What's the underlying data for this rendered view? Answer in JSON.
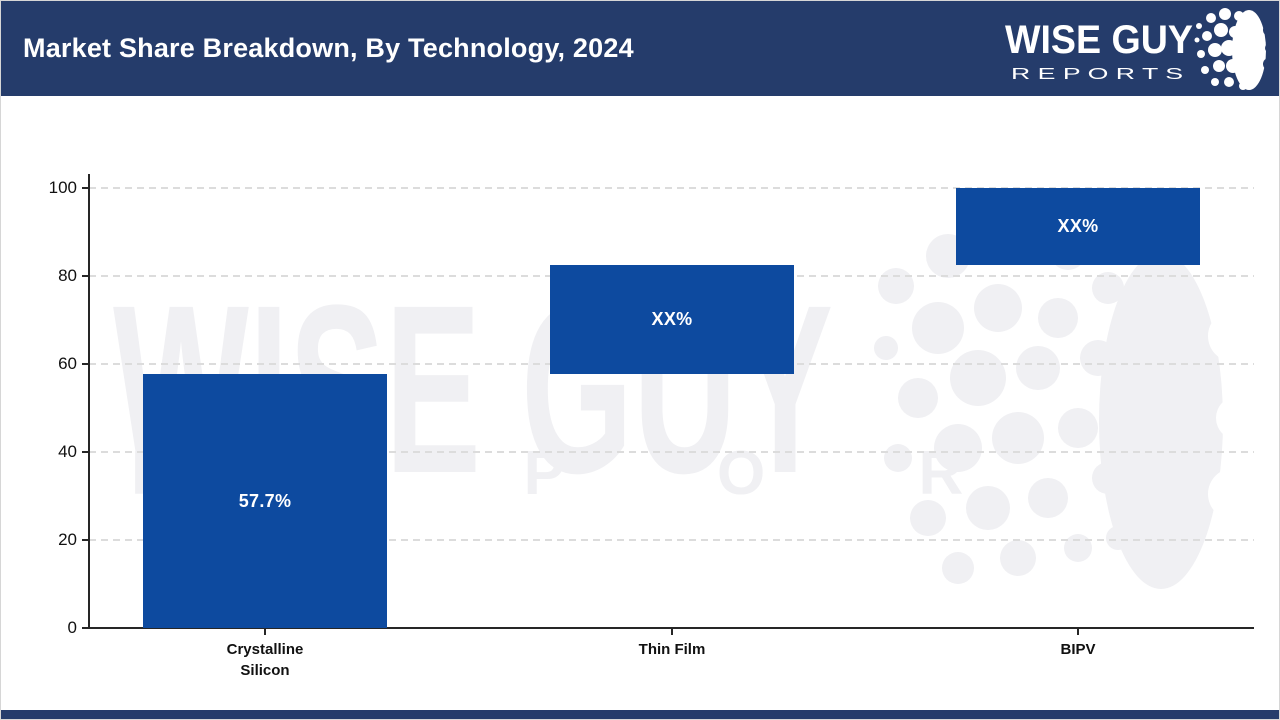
{
  "header": {
    "title": "Market Share Breakdown, By Technology, 2024",
    "logo_line1": "WISE GUY",
    "logo_line2": "R E P O R T S"
  },
  "watermark": {
    "line1": "WISE GUY",
    "line2": "R E P O R T S"
  },
  "chart_data": {
    "type": "bar",
    "subtype": "floating-segment-waterfall",
    "title": "Market Share Breakdown, By Technology, 2024",
    "categories": [
      "Crystalline\nSilicon",
      "Thin Film",
      "BIPV"
    ],
    "segments": [
      {
        "category": "Crystalline Silicon",
        "start": 0,
        "end": 57.7,
        "label": "57.7%"
      },
      {
        "category": "Thin Film",
        "start": 57.7,
        "end": 82.6,
        "label": "XX%"
      },
      {
        "category": "BIPV",
        "start": 82.6,
        "end": 100,
        "label": "XX%"
      }
    ],
    "ylim": [
      0,
      100
    ],
    "yticks": [
      0,
      20,
      40,
      60,
      80,
      100
    ],
    "grid": "horizontal-dashed",
    "legend": "none",
    "xlabel": "",
    "ylabel": ""
  },
  "colors": {
    "header_bg": "#253C6B",
    "footer_bg": "#253C6B",
    "bar": "#0D4A9F",
    "bar_label": "#FFFFFF",
    "grid": "#DCDCDC",
    "axis": "#262626",
    "watermark": "#F0F0F3"
  }
}
